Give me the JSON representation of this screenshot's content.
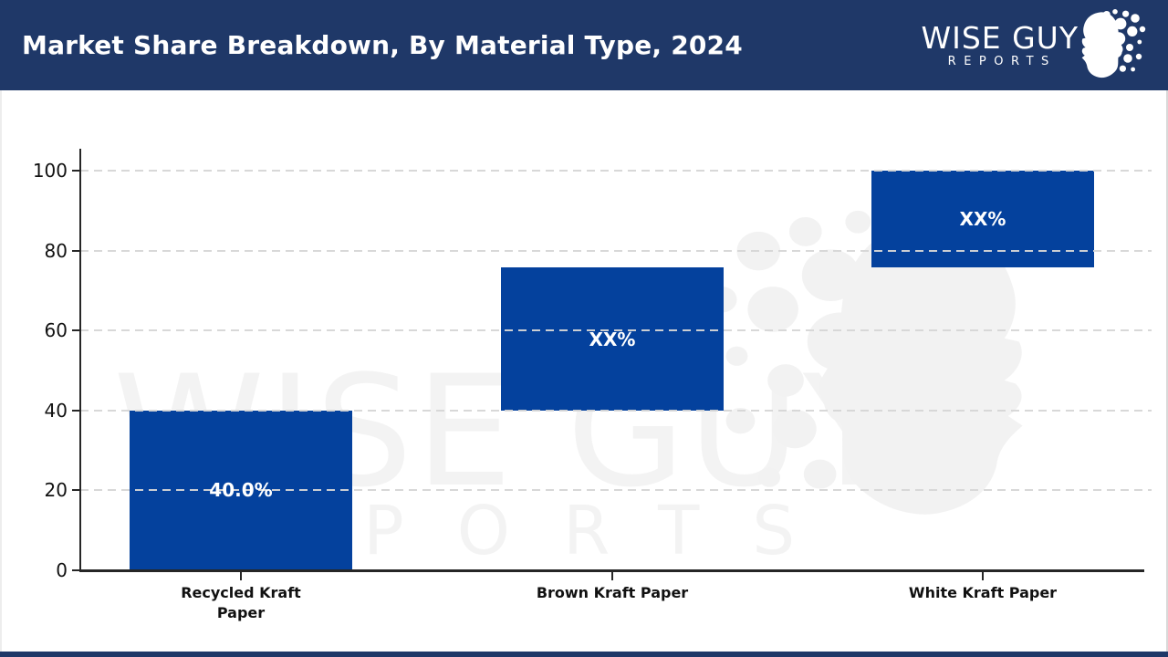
{
  "header": {
    "title": "Market Share Breakdown, By Material Type, 2024",
    "bg_color": "#1f3868",
    "text_color": "#ffffff",
    "logo": {
      "line1": "WISE GUY",
      "line2": "REPORTS"
    }
  },
  "watermark": {
    "line1": "WISE GUY",
    "line2": "REPORTS"
  },
  "chart_data": {
    "type": "bar",
    "subtype": "waterfall",
    "title": "Market Share Breakdown, By Material Type, 2024",
    "categories": [
      "Recycled Kraft Paper",
      "Brown Kraft Paper",
      "White Kraft Paper"
    ],
    "category_lines": [
      [
        "Recycled Kraft",
        "Paper"
      ],
      [
        "Brown Kraft Paper"
      ],
      [
        "White Kraft Paper"
      ]
    ],
    "segments": [
      {
        "category": "Recycled Kraft Paper",
        "start": 0,
        "end": 40,
        "value": 40.0,
        "label": "40.0%"
      },
      {
        "category": "Brown Kraft Paper",
        "start": 40,
        "end": 75.7,
        "value": 35.7,
        "label": "XX%"
      },
      {
        "category": "White Kraft Paper",
        "start": 75.7,
        "end": 100,
        "value": 24.3,
        "label": "XX%"
      }
    ],
    "xlabel": "",
    "ylabel": "",
    "ylim": [
      0,
      100
    ],
    "yticks": [
      0,
      20,
      40,
      60,
      80,
      100
    ],
    "grid": "horizontal-dashed",
    "legend": "none",
    "bar_color": "#04419d",
    "bar_label_color": "#ffffff",
    "axis_color": "#262626"
  },
  "footer": {
    "bg_color": "#1f3868"
  }
}
